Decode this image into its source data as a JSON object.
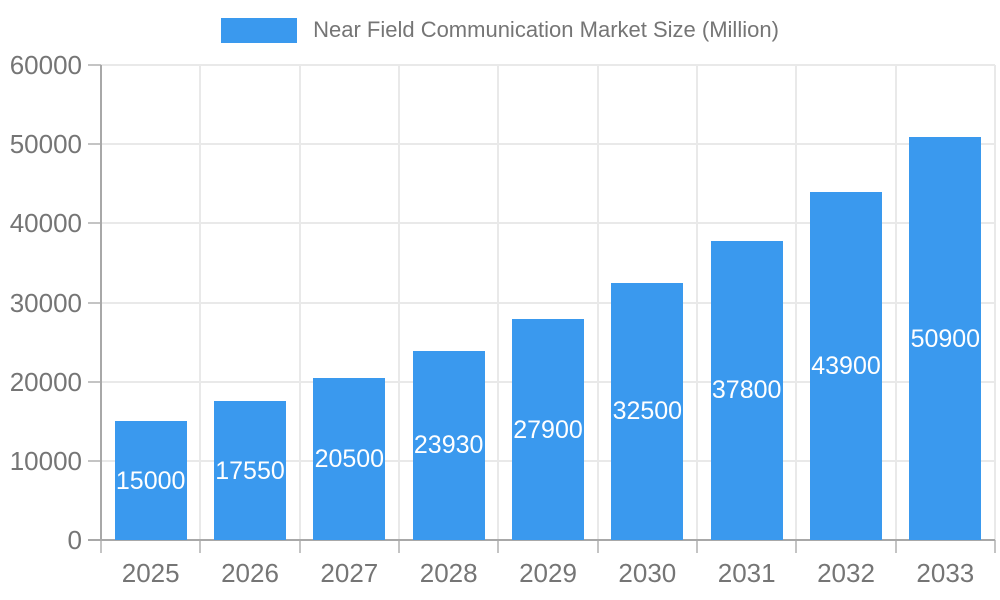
{
  "legend": {
    "label": "Near Field Communication Market Size (Million)"
  },
  "chart_data": {
    "type": "bar",
    "title": "Near Field Communication Market Size (Million)",
    "categories": [
      "2025",
      "2026",
      "2027",
      "2028",
      "2029",
      "2030",
      "2031",
      "2032",
      "2033"
    ],
    "values": [
      15000,
      17550,
      20500,
      23930,
      27900,
      32500,
      37800,
      43900,
      50900
    ],
    "xlabel": "",
    "ylabel": "",
    "ylim": [
      0,
      60000
    ],
    "yticks": [
      0,
      10000,
      20000,
      30000,
      40000,
      50000,
      60000
    ],
    "grid": true,
    "legend_position": "top-center",
    "value_labels": "inside-center"
  },
  "colors": {
    "bar": "#3A99EE",
    "bar_value_text": "#FFFFFF",
    "axis_text": "#757575",
    "legend_text": "#757575",
    "axis_line": "#A8A8A8",
    "grid_line": "#E9E9E9",
    "tick_line": "#C4C4C4",
    "background": "#FFFFFF"
  }
}
